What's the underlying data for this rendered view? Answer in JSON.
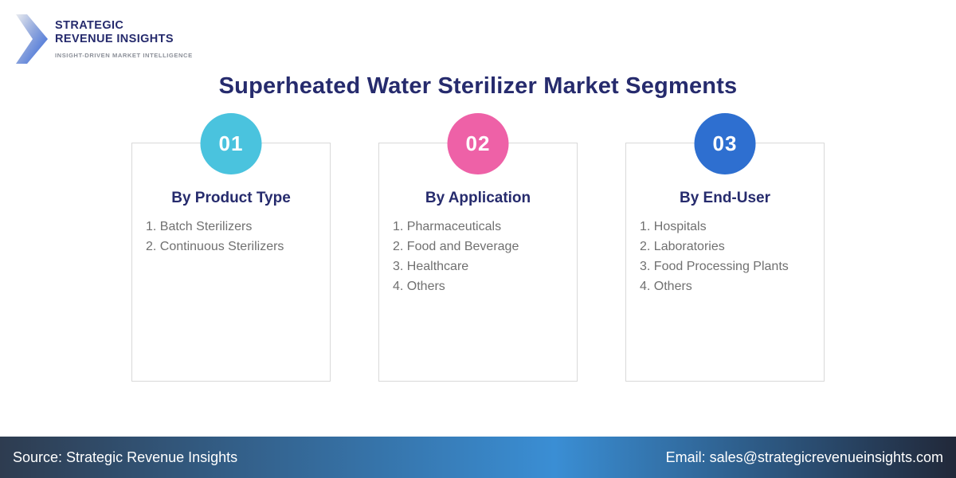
{
  "logo": {
    "name_line1": "STRATEGIC",
    "name_line2": "REVENUE INSIGHTS",
    "tagline": "INSIGHT-DRIVEN MARKET INTELLIGENCE"
  },
  "title": "Superheated Water Sterilizer Market Segments",
  "cards": [
    {
      "number": "01",
      "accent": "#4ac3de",
      "heading": "By Product Type",
      "items": [
        "1. Batch Sterilizers",
        "2. Continuous Sterilizers"
      ]
    },
    {
      "number": "02",
      "accent": "#ee61a7",
      "heading": "By Application",
      "items": [
        "1. Pharmaceuticals",
        "2. Food and Beverage",
        "3. Healthcare",
        "4. Others"
      ]
    },
    {
      "number": "03",
      "accent": "#2e6fd0",
      "heading": "By End-User",
      "items": [
        "1. Hospitals",
        "2. Laboratories",
        "3. Food Processing Plants",
        "4. Others"
      ]
    }
  ],
  "footer": {
    "source": "Source: Strategic Revenue Insights",
    "email": "Email: sales@strategicrevenueinsights.com"
  },
  "colors": {
    "navy": "#262b6d",
    "body_text": "#707070",
    "card_border": "#d9d9d9",
    "footer_gradient_left": "#2e3c50",
    "footer_gradient_mid": "#3a8ed4",
    "footer_gradient_right": "#212839",
    "logo_gradient_start": "#e9ebef",
    "logo_gradient_end": "#2f63d8"
  }
}
